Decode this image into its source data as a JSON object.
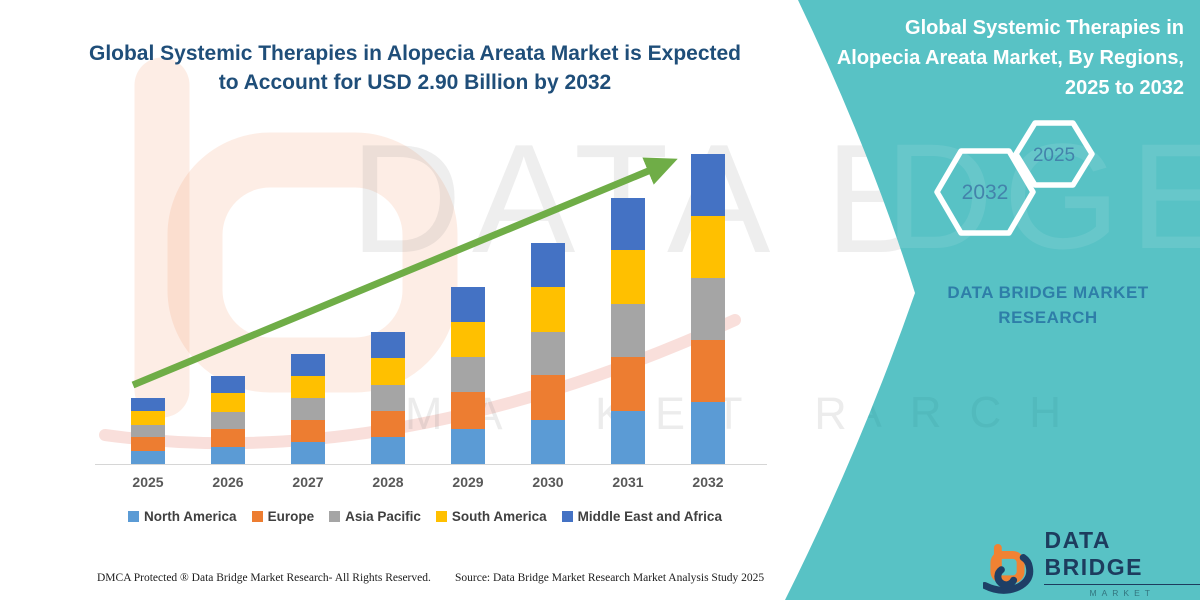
{
  "main_title": {
    "line1": "Global Systemic Therapies in Alopecia Areata Market is Expected",
    "line2": "to Account for USD 2.90 Billion by 2032",
    "color": "#1F4E79"
  },
  "chart_data": {
    "type": "bar",
    "stacked": true,
    "title": "Global Systemic Therapies in Alopecia Areata Market",
    "unit": "USD Billion",
    "categories": [
      "2025",
      "2026",
      "2027",
      "2028",
      "2029",
      "2030",
      "2031",
      "2032"
    ],
    "series": [
      {
        "name": "North America",
        "color": "#5B9BD5",
        "values": [
          0.12,
          0.16,
          0.21,
          0.25,
          0.33,
          0.41,
          0.5,
          0.58
        ]
      },
      {
        "name": "Europe",
        "color": "#ED7D31",
        "values": [
          0.13,
          0.17,
          0.2,
          0.25,
          0.34,
          0.42,
          0.5,
          0.58
        ]
      },
      {
        "name": "Asia Pacific",
        "color": "#A5A5A5",
        "values": [
          0.12,
          0.16,
          0.21,
          0.24,
          0.33,
          0.41,
          0.5,
          0.58
        ]
      },
      {
        "name": "South America",
        "color": "#FFC000",
        "values": [
          0.13,
          0.17,
          0.2,
          0.25,
          0.33,
          0.42,
          0.5,
          0.58
        ]
      },
      {
        "name": "Middle East and Africa",
        "color": "#4472C4",
        "values": [
          0.12,
          0.16,
          0.21,
          0.25,
          0.33,
          0.41,
          0.49,
          0.58
        ]
      }
    ],
    "totals": [
      0.62,
      0.82,
      1.03,
      1.24,
      1.66,
      2.07,
      2.49,
      2.9
    ],
    "ylim": [
      0,
      2.9
    ],
    "y_axis_visible": false,
    "grid": false,
    "legend_position": "bottom",
    "trend_arrow": {
      "present": true,
      "color": "#6FAD47",
      "direction": "up-right"
    }
  },
  "side_panel": {
    "title": "Global Systemic Therapies in Alopecia Areata Market, By Regions, 2025 to 2032",
    "background": "#58C2C5",
    "hexagons": [
      {
        "label": "2032"
      },
      {
        "label": "2025"
      }
    ],
    "hexagon_label_color": "#4383AB",
    "brand": "DATA BRIDGE MARKET RESEARCH",
    "brand_color": "#2E7EA8"
  },
  "footer": {
    "left": "DMCA Protected ® Data Bridge Market Research-  All Rights Reserved.",
    "source": "Source: Data Bridge Market Research  Market Analysis Study 2025"
  },
  "logo": {
    "name": "DATA BRIDGE",
    "subtitle": "MARKET RESEARCH",
    "navy": "#1D3C5E",
    "orange": "#F08233"
  },
  "watermarks": {
    "brand": "DATA BRIDGE",
    "sub": "MARKET RESEARCH",
    "panel_big": "RIDGE",
    "panel_sub": "EARCH"
  }
}
